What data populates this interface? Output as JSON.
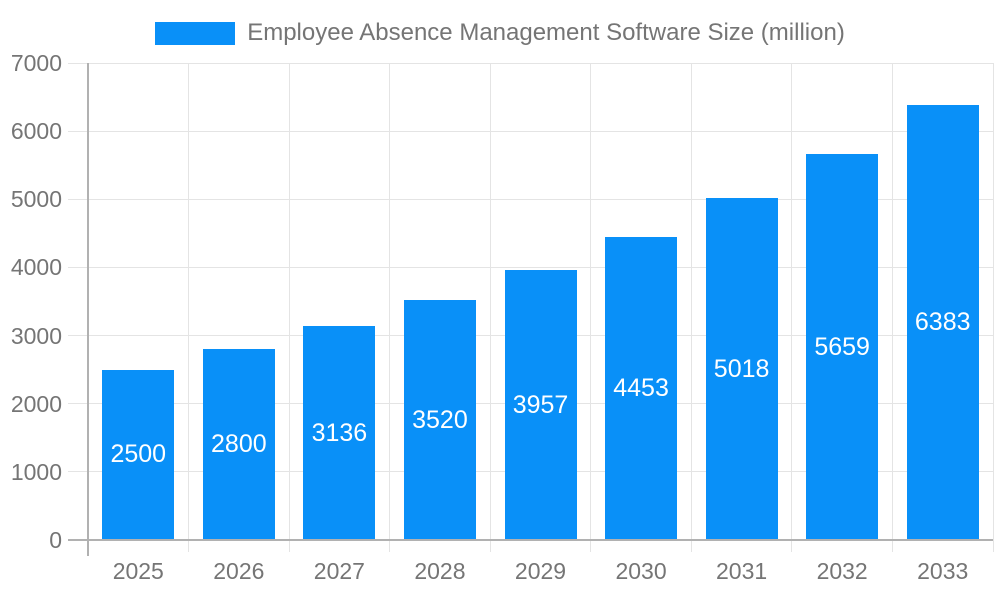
{
  "chart_data": {
    "type": "bar",
    "title": "Employee Absence Management Software Size (million)",
    "categories": [
      "2025",
      "2026",
      "2027",
      "2028",
      "2029",
      "2030",
      "2031",
      "2032",
      "2033"
    ],
    "values": [
      2500,
      2800,
      3136,
      3520,
      3957,
      4453,
      5018,
      5659,
      6383
    ],
    "value_labels": [
      "2500",
      "2800",
      "3136",
      "3520",
      "3957",
      "4453",
      "5018",
      "5659",
      "6383"
    ],
    "xlabel": "",
    "ylabel": "",
    "ylim": [
      0,
      7000
    ],
    "ytick_step": 1000,
    "ytick_labels": [
      "0",
      "1000",
      "2000",
      "3000",
      "4000",
      "5000",
      "6000",
      "7000"
    ],
    "grid": true,
    "legend_position": "top",
    "legend": {
      "label": "Employee Absence Management Software Size (million)"
    },
    "colors": {
      "bar": "#0990f8",
      "value_label": "#ffffff",
      "axis_text": "#757575",
      "grid_line": "#e4e4e4",
      "axis_line": "#b1b1b1",
      "background": "#ffffff"
    }
  }
}
